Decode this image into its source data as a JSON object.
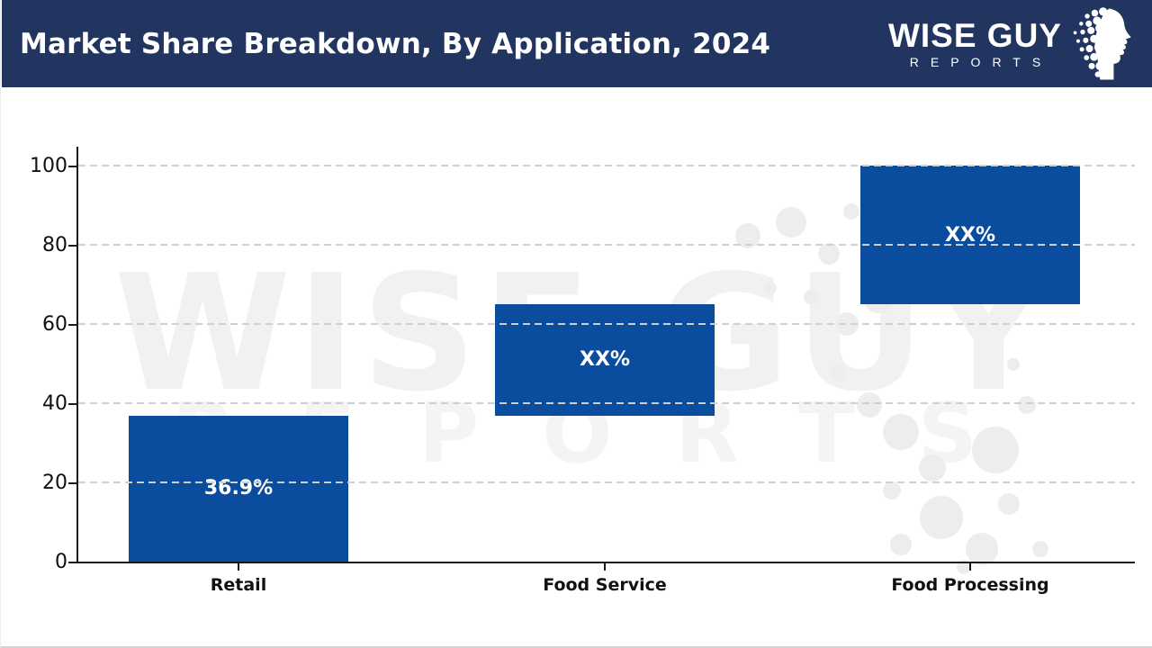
{
  "header": {
    "title": "Market Share Breakdown, By Application, 2024",
    "logo": {
      "line1": "WISE GUY",
      "line2": "REPORTS",
      "icon": "dotted-face-profile-icon"
    }
  },
  "watermark": {
    "line1": "WISE GUY",
    "line2": "REPORTS"
  },
  "colors": {
    "header_bg": "#213560",
    "bar": "#0a4d9e",
    "bar_label": "#ffffff",
    "gridline": "#d0d0d0",
    "axis": "#1a1a1a",
    "watermark": "#f1f1f4"
  },
  "chart_data": {
    "type": "bar",
    "subtype": "waterfall",
    "title": "Market Share Breakdown, By Application, 2024",
    "categories": [
      "Retail",
      "Food Service",
      "Food Processing"
    ],
    "segments": [
      {
        "category": "Retail",
        "start": 0,
        "end": 36.9,
        "label": "36.9%"
      },
      {
        "category": "Food Service",
        "start": 36.9,
        "end": 65,
        "label": "XX%"
      },
      {
        "category": "Food Processing",
        "start": 65,
        "end": 100,
        "label": "XX%"
      }
    ],
    "y_ticks": [
      0,
      20,
      40,
      60,
      80,
      100
    ],
    "ylim": [
      0,
      105
    ],
    "xlabel": "",
    "ylabel": "",
    "grid": "horizontal-dashed-above-bars",
    "legend": "none"
  }
}
